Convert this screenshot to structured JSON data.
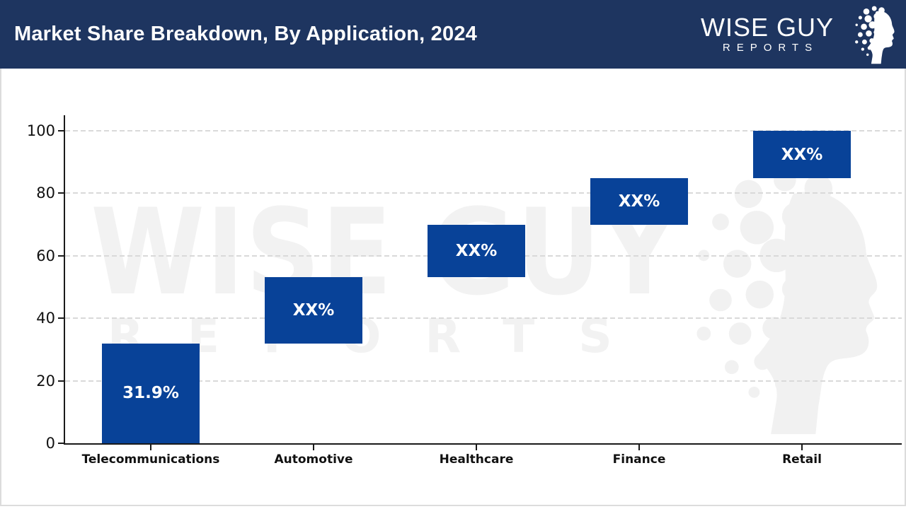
{
  "header": {
    "title": "Market Share Breakdown, By Application, 2024",
    "logo": {
      "wordmark": "WISE GUY",
      "subtext": "REPORTS"
    },
    "bg_color": "#1e3560"
  },
  "watermark": {
    "wordmark": "WISE GUY",
    "subtext": "REPORTS"
  },
  "colors": {
    "bar": "#084298",
    "grid": "#d9d9d9",
    "axis": "#1a1a1a",
    "bar_label": "#ffffff",
    "header_bg": "#1e3560",
    "watermark": "#f2f2f2"
  },
  "chart_data": {
    "type": "bar",
    "subtype": "waterfall",
    "title": "Market Share Breakdown, By Application, 2024",
    "categories": [
      "Telecommunications",
      "Automotive",
      "Healthcare",
      "Finance",
      "Retail"
    ],
    "bars": [
      {
        "category": "Telecommunications",
        "start": 0,
        "end": 31.9,
        "label": "31.9%"
      },
      {
        "category": "Automotive",
        "start": 31.9,
        "end": 53.1,
        "label": "XX%"
      },
      {
        "category": "Healthcare",
        "start": 53.1,
        "end": 69.9,
        "label": "XX%"
      },
      {
        "category": "Finance",
        "start": 69.9,
        "end": 84.8,
        "label": "XX%"
      },
      {
        "category": "Retail",
        "start": 84.8,
        "end": 100,
        "label": "XX%"
      }
    ],
    "y_ticks": [
      "0",
      "20",
      "40",
      "60",
      "80",
      "100"
    ],
    "ylim": [
      0,
      105
    ],
    "xlabel": "",
    "ylabel": "",
    "grid": "horizontal-dashed",
    "legend": "none",
    "bar_color": "#084298"
  }
}
